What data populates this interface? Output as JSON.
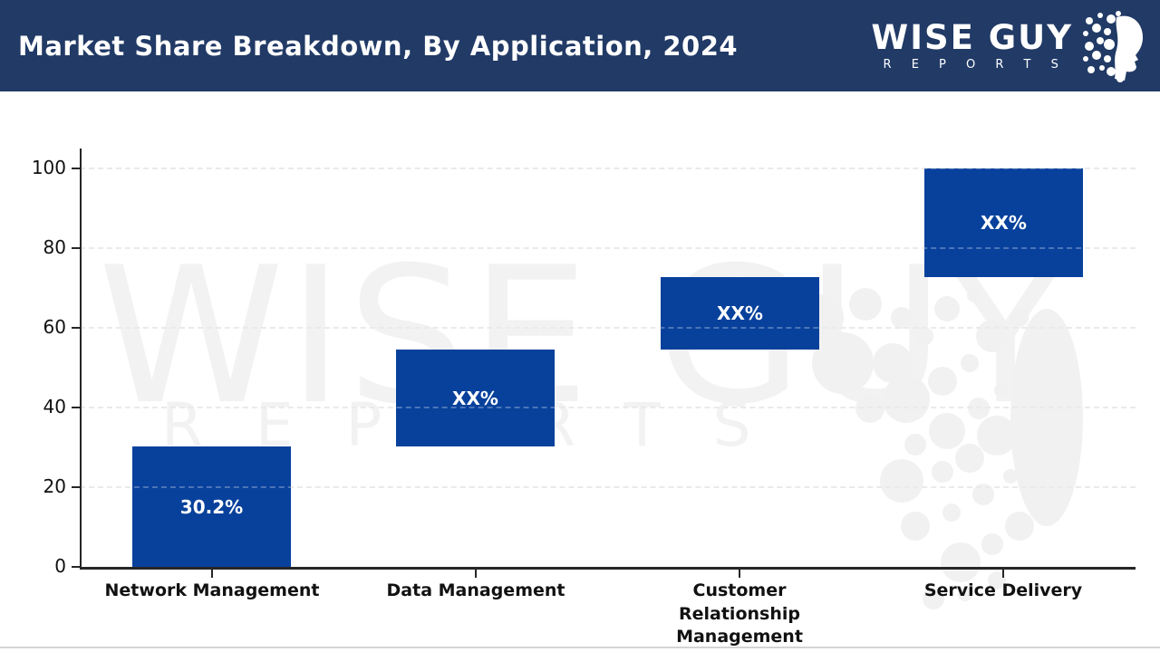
{
  "header": {
    "title": "Market Share Breakdown, By Application, 2024",
    "brand_line1": "WISE GUY",
    "brand_line2": "R E P O R T S",
    "bg_color": "#213a66"
  },
  "watermark": {
    "line1": "WISE GUY",
    "line2": "REPORTS"
  },
  "chart_data": {
    "type": "bar",
    "subtype": "waterfall",
    "title": "Market Share Breakdown, By Application, 2024",
    "categories": [
      "Network Management",
      "Data Management",
      "Customer Relationship Management",
      "Service Delivery"
    ],
    "segments": [
      {
        "category": "Network Management",
        "start": 0,
        "end": 30.2,
        "label": "30.2%"
      },
      {
        "category": "Data Management",
        "start": 30.2,
        "end": 54.5,
        "label": "XX%"
      },
      {
        "category": "Customer Relationship Management",
        "start": 54.5,
        "end": 72.7,
        "label": "XX%"
      },
      {
        "category": "Service Delivery",
        "start": 72.7,
        "end": 100,
        "label": "XX%"
      }
    ],
    "ylim": [
      0,
      100
    ],
    "yticks": [
      0,
      20,
      40,
      60,
      80,
      100
    ],
    "grid": "horizontal-dashed",
    "legend": "none",
    "bar_color": "#07419c",
    "bar_label_color": "#ffffff",
    "gridline_color": "#e2e2e2"
  }
}
